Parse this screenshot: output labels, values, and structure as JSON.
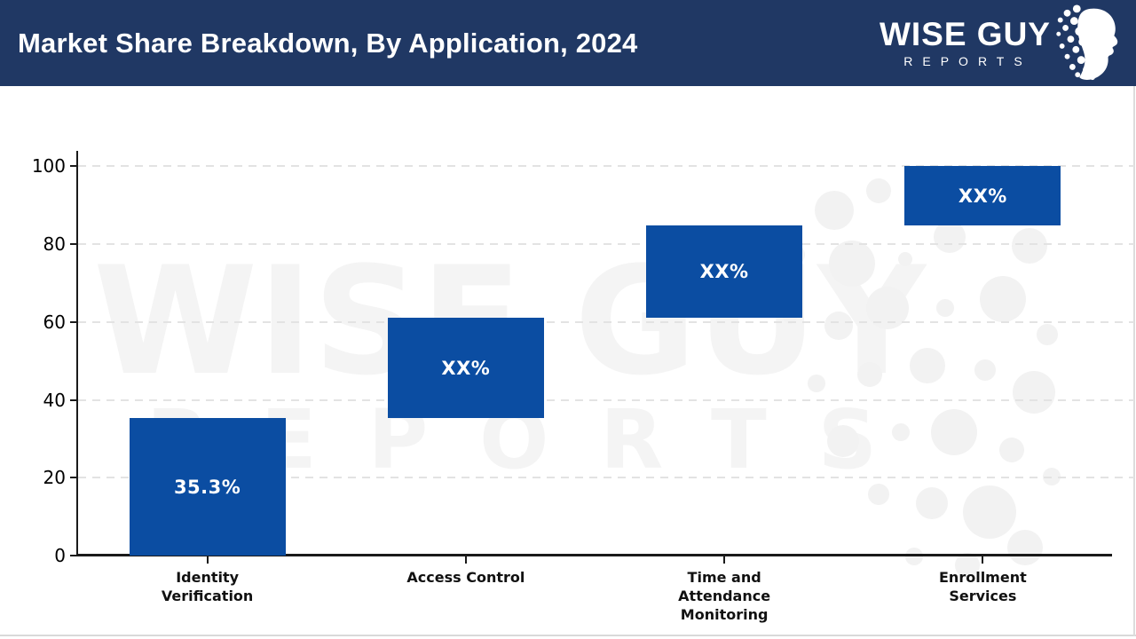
{
  "header": {
    "title": "Market Share Breakdown, By Application, 2024",
    "background": "#203864",
    "logo": {
      "line1": "WISE GUY",
      "line2": "REPORTS"
    }
  },
  "watermark": {
    "line1": "WISE GUY",
    "line2": "REPORTS"
  },
  "chart_data": {
    "type": "bar",
    "variant": "waterfall (floating stepped bars)",
    "title": "Market Share Breakdown, By Application, 2024",
    "categories": [
      "Identity Verification",
      "Access Control",
      "Time and Attendance Monitoring",
      "Enrollment Services"
    ],
    "category_lines": [
      [
        "Identity",
        "Verification"
      ],
      [
        "Access Control"
      ],
      [
        "Time and",
        "Attendance",
        "Monitoring"
      ],
      [
        "Enrollment",
        "Services"
      ]
    ],
    "bars": [
      {
        "label": "35.3%",
        "start": 0,
        "end": 35.3
      },
      {
        "label": "XX%",
        "start": 35.3,
        "end": 61
      },
      {
        "label": "XX%",
        "start": 61,
        "end": 84.8
      },
      {
        "label": "XX%",
        "start": 84.8,
        "end": 100
      }
    ],
    "y_ticks": [
      0,
      20,
      40,
      60,
      80,
      100
    ],
    "ylim": [
      0,
      104
    ],
    "xlabel": "",
    "ylabel": "",
    "grid": "horizontal dashed",
    "bar_color": "#0b4da2",
    "bar_label_color": "#ffffff",
    "axis_color": "#1a1a1a"
  }
}
